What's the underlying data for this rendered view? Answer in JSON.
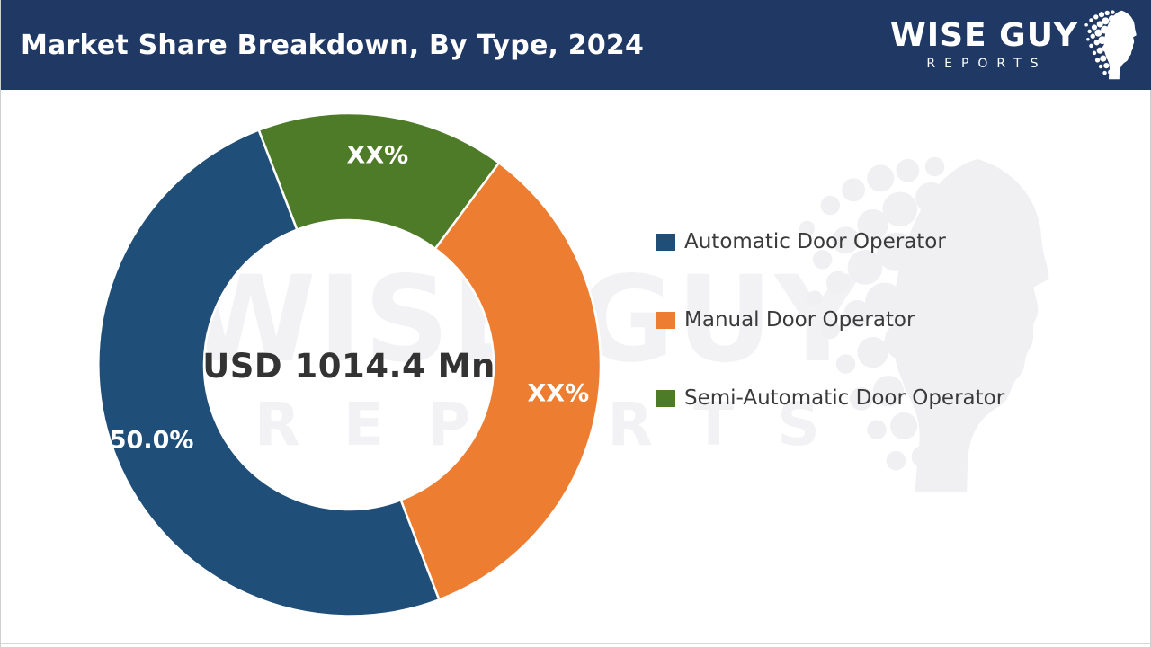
{
  "header": {
    "title": "Market Share Breakdown, By Type, 2024"
  },
  "brand": {
    "name": "WISE GUY",
    "tagline": "REPORTS"
  },
  "chart_data": {
    "type": "donut",
    "title": "Market Share Breakdown, By Type, 2024",
    "center_label": "USD 1014.4 Mn",
    "start_angle_deg": -21,
    "legend_position": "right",
    "segments": [
      {
        "name": "Automatic Door Operator",
        "value": 50.0,
        "label": "50.0%",
        "color": "#1F4E79"
      },
      {
        "name": "Manual Door Operator",
        "value": 34.0,
        "label": "XX%",
        "color": "#ED7D31"
      },
      {
        "name": "Semi-Automatic Door Operator",
        "value": 16.0,
        "label": "XX%",
        "color": "#4E7B28"
      }
    ],
    "colors": {
      "header_bar": "#1F3864",
      "center_text": "#333333",
      "legend_text": "#3A3A3A",
      "watermark": "#F2F2F4"
    }
  }
}
